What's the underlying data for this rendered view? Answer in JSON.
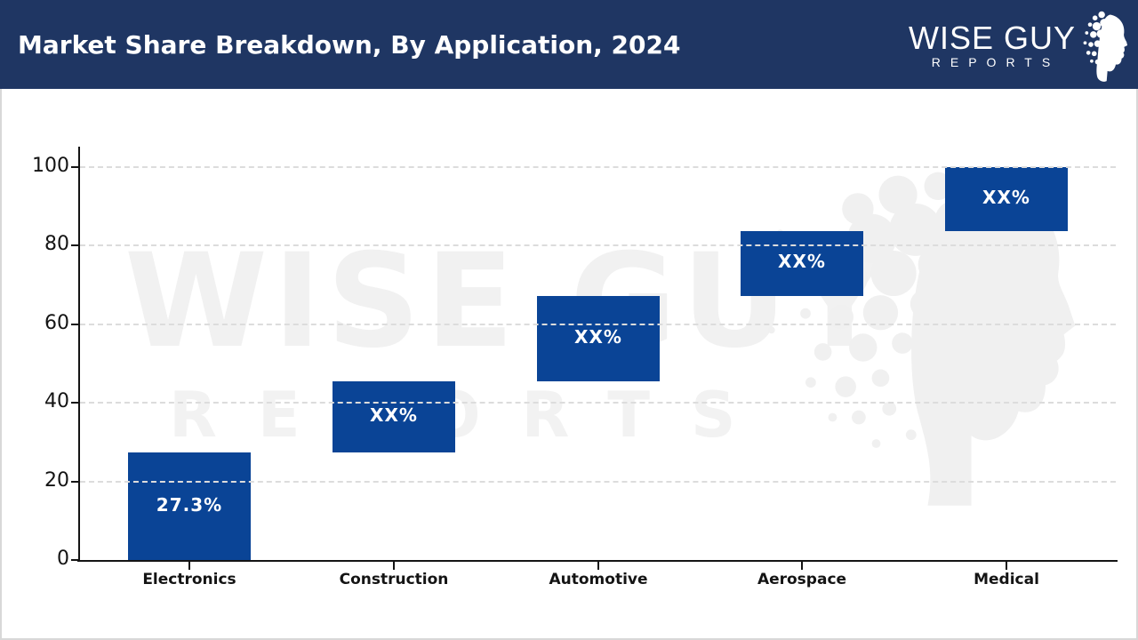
{
  "header": {
    "title": "Market Share Breakdown, By Application, 2024",
    "bg_color": "#1f3663",
    "logo": {
      "line1": "WISE GUY",
      "line2": "REPORTS"
    }
  },
  "watermark": {
    "line1": "WISE GUY",
    "line2": "REPORTS"
  },
  "chart_data": {
    "type": "bar",
    "subtype": "waterfall",
    "title": "Market Share Breakdown, By Application, 2024",
    "categories": [
      "Electronics",
      "Construction",
      "Automotive",
      "Aerospace",
      "Medical"
    ],
    "segments": [
      {
        "category": "Electronics",
        "start": 0,
        "end": 27.3,
        "label": "27.3%"
      },
      {
        "category": "Construction",
        "start": 27.3,
        "end": 45.5,
        "label": "XX%"
      },
      {
        "category": "Automotive",
        "start": 45.5,
        "end": 67.3,
        "label": "XX%"
      },
      {
        "category": "Aerospace",
        "start": 67.3,
        "end": 83.7,
        "label": "XX%"
      },
      {
        "category": "Medical",
        "start": 83.7,
        "end": 100,
        "label": "XX%"
      }
    ],
    "ylim": [
      0,
      100
    ],
    "yticks": [
      0,
      20,
      40,
      60,
      80,
      100
    ],
    "xlabel": "",
    "ylabel": "",
    "grid": "horizontal dashed, drawn over bars",
    "legend": "none",
    "bar_color": "#0a4496",
    "label_color": "#ffffff",
    "axis_color": "#141414",
    "gridline_color": "#dcdcdc"
  }
}
